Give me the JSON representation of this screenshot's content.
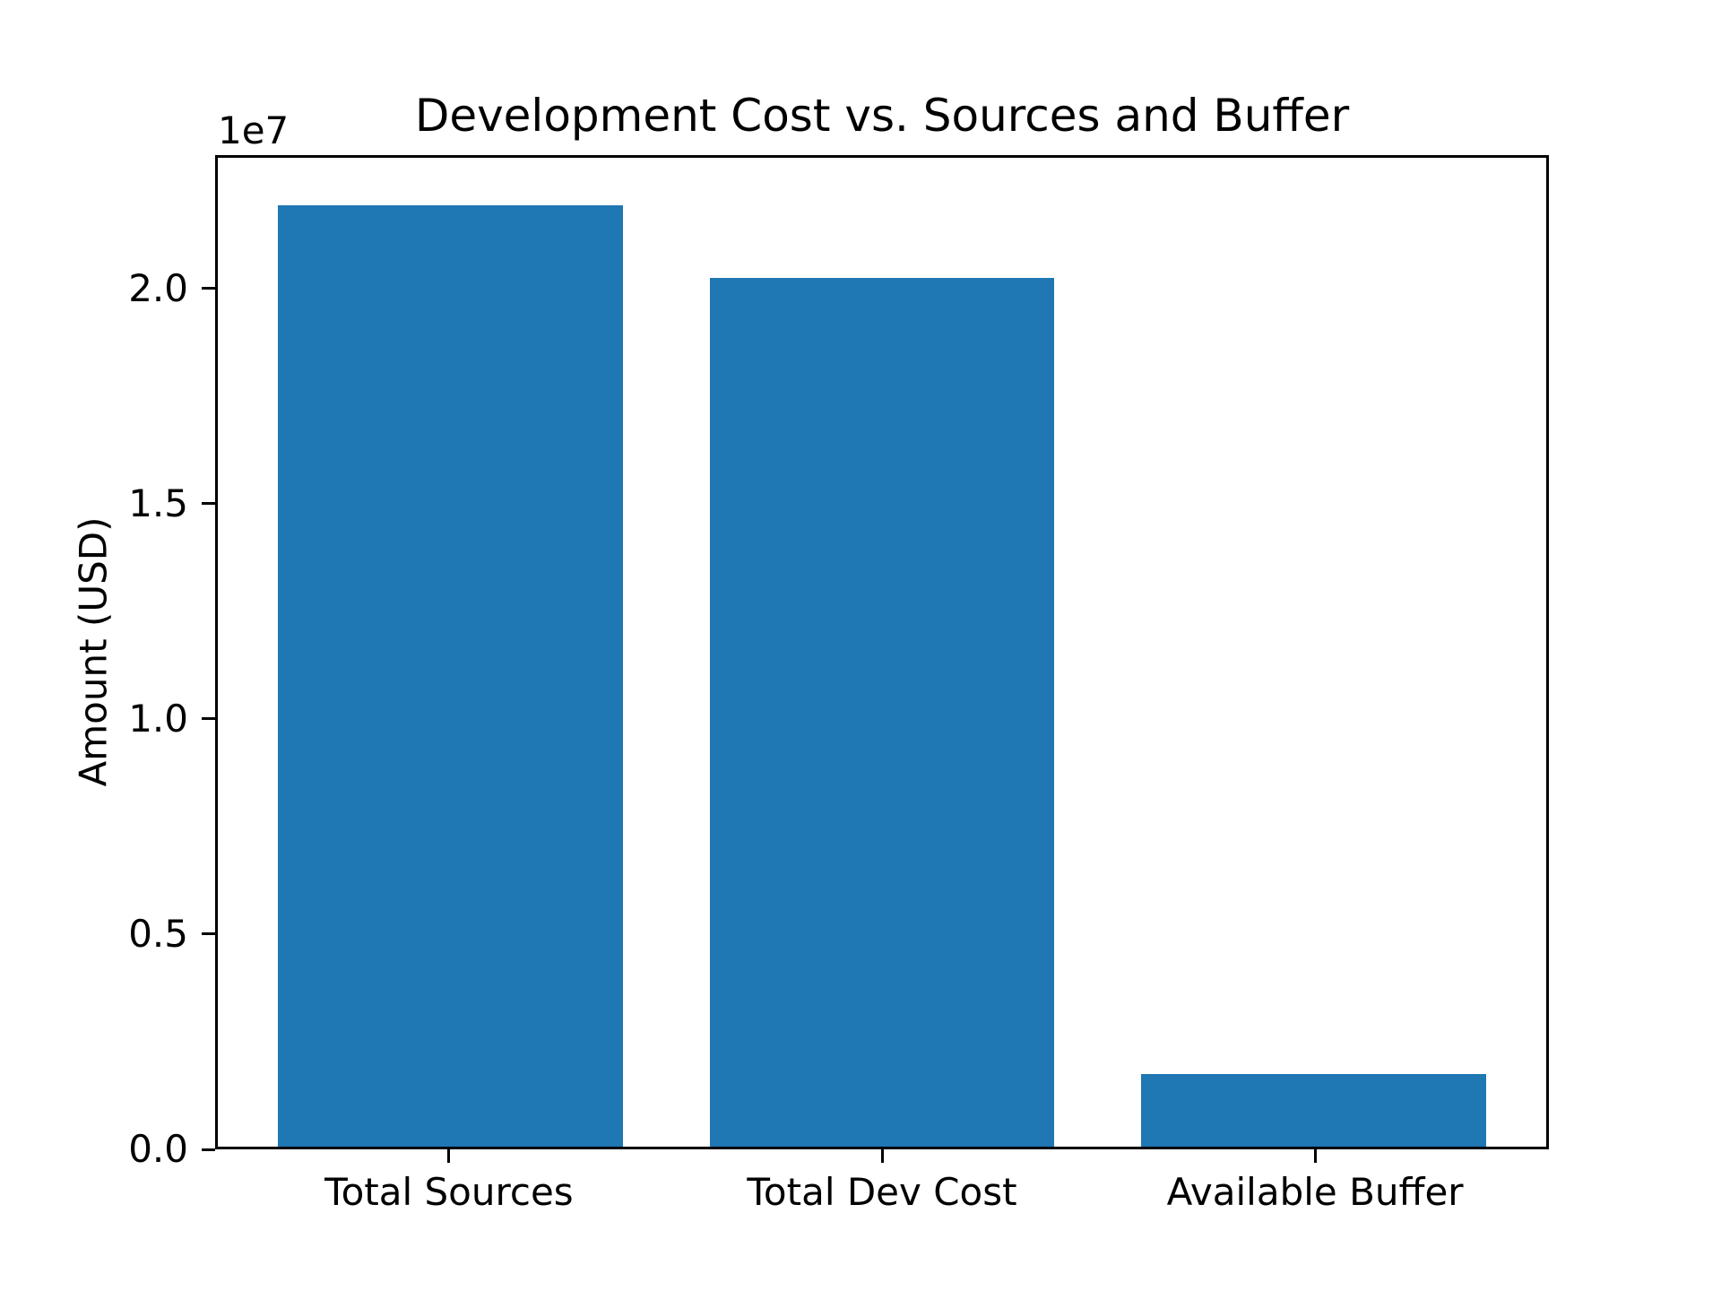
{
  "figure": {
    "background": "#ffffff",
    "text_color": "#000000"
  },
  "chart_data": {
    "type": "bar",
    "title": "Development Cost vs. Sources and Buffer",
    "xlabel": "",
    "ylabel": "Amount (USD)",
    "y_offset_label": "1e7",
    "categories": [
      "Total Sources",
      "Total Dev Cost",
      "Available Buffer"
    ],
    "values": [
      22000000,
      20300000,
      1700000
    ],
    "bar_color": "#1f77b4",
    "bar_width": 0.8,
    "xlim": [
      -0.54,
      2.54
    ],
    "ylim": [
      0,
      23100000
    ],
    "yticks": [
      0,
      5000000,
      10000000,
      15000000,
      20000000
    ],
    "ytick_labels": [
      "0.0",
      "0.5",
      "1.0",
      "1.5",
      "2.0"
    ],
    "grid": false,
    "legend": "none"
  }
}
